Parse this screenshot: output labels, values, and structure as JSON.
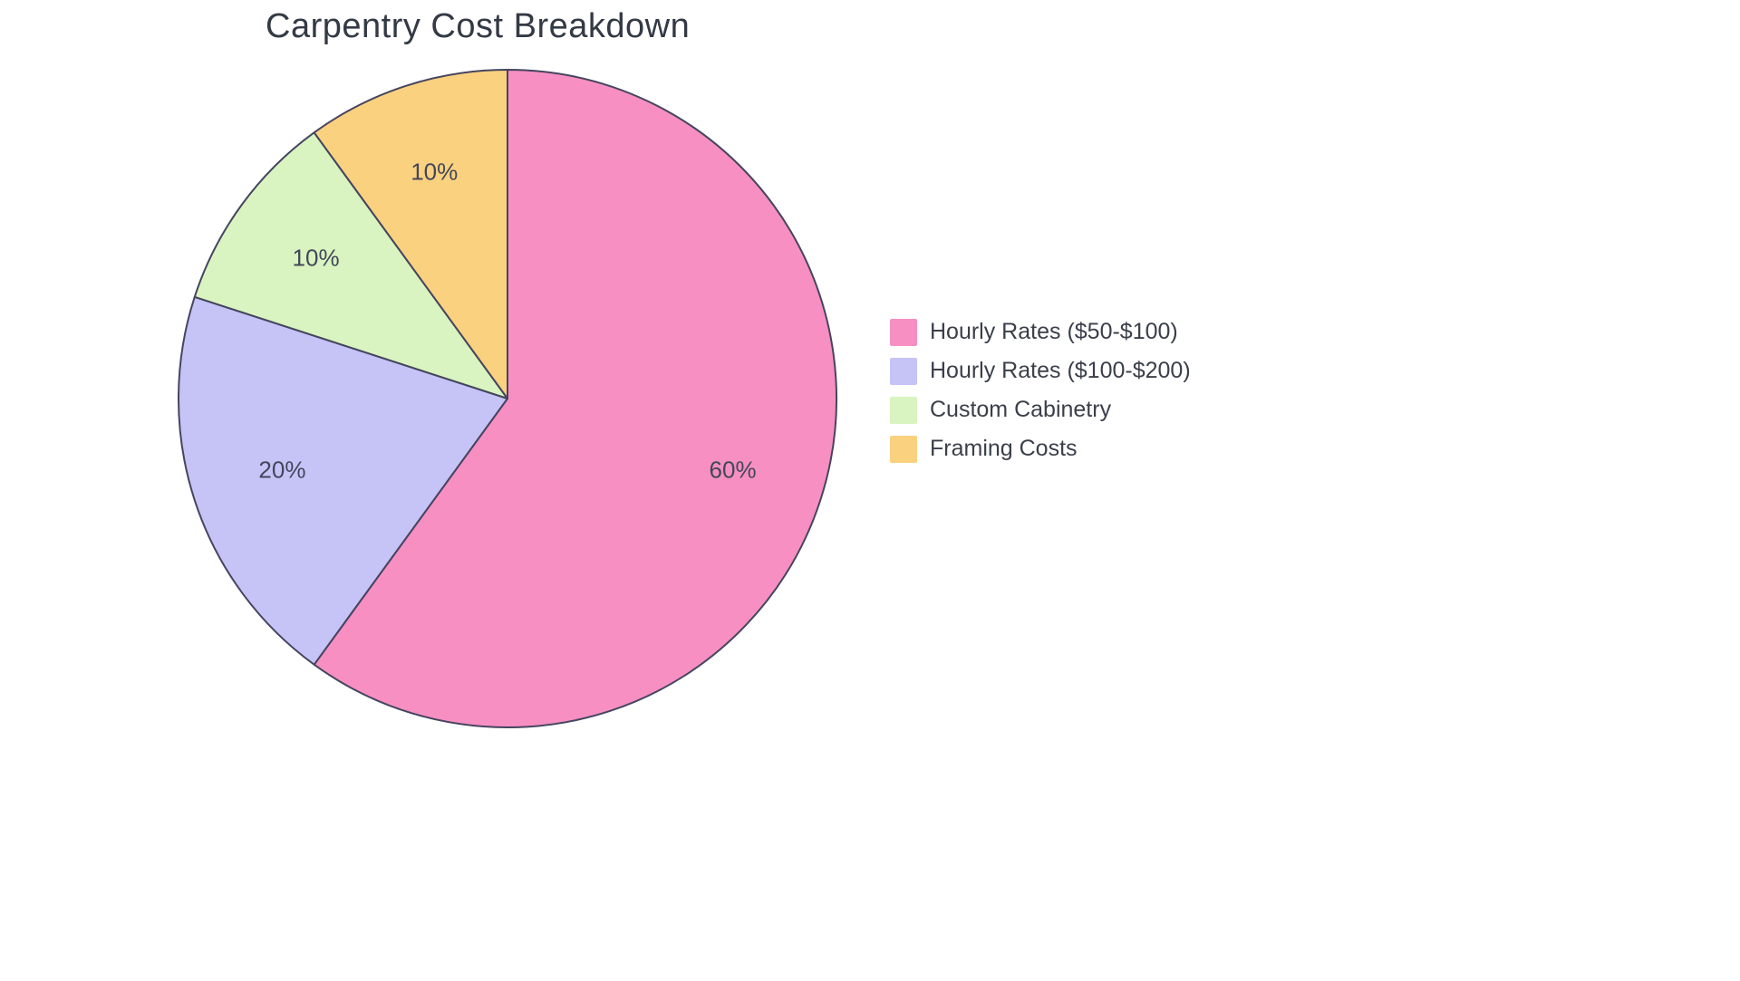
{
  "page": {
    "background_color": "#FFFFFF"
  },
  "chart_data": {
    "type": "pie",
    "title": "Carpentry Cost Breakdown",
    "start_angle_deg": -90,
    "direction": "clockwise",
    "legend_position": "right",
    "stroke_color": "#45455F",
    "stroke_width": 2,
    "label_color": "#42475A",
    "title_color": "#333A45",
    "slices": [
      {
        "label": "Hourly Rates ($50-$100)",
        "value": 60,
        "data_label": "60%",
        "color": "#F78FC2"
      },
      {
        "label": "Hourly Rates ($100-$200)",
        "value": 20,
        "data_label": "20%",
        "color": "#C6C3F7"
      },
      {
        "label": "Custom Cabinetry",
        "value": 10,
        "data_label": "10%",
        "color": "#D9F4C0"
      },
      {
        "label": "Framing Costs",
        "value": 10,
        "data_label": "10%",
        "color": "#FAD17F"
      }
    ]
  }
}
